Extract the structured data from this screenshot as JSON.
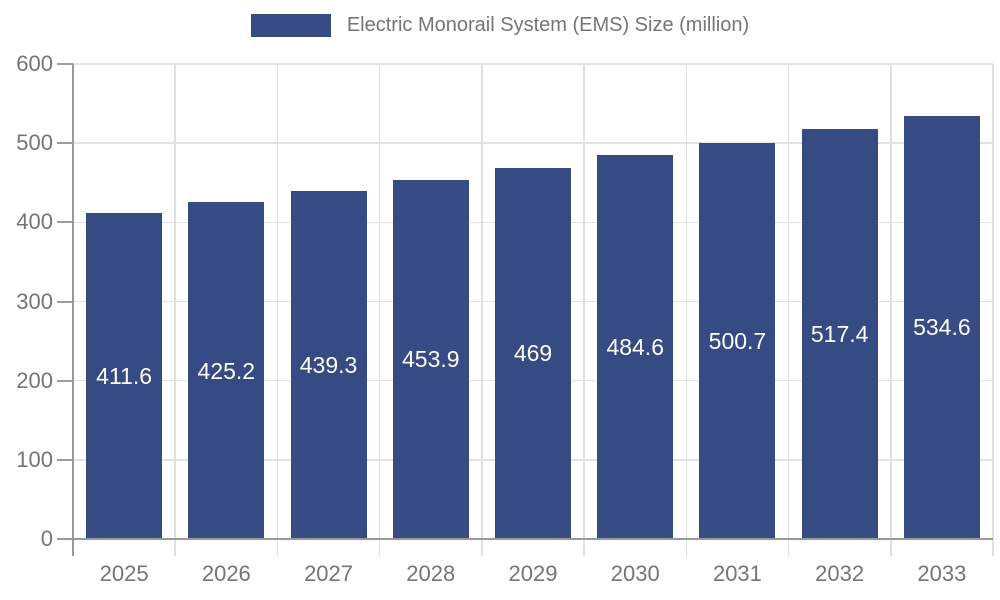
{
  "chart_data": {
    "type": "bar",
    "title": "Electric Monorail System (EMS) Size (million)",
    "categories": [
      "2025",
      "2026",
      "2027",
      "2028",
      "2029",
      "2030",
      "2031",
      "2032",
      "2033"
    ],
    "values": [
      411.6,
      425.2,
      439.3,
      453.9,
      469,
      484.6,
      500.7,
      517.4,
      534.6
    ],
    "value_labels": [
      "411.6",
      "425.2",
      "439.3",
      "453.9",
      "469",
      "484.6",
      "500.7",
      "517.4",
      "534.6"
    ],
    "xlabel": "",
    "ylabel": "",
    "ylim": [
      0,
      600
    ],
    "yticks": [
      0,
      100,
      200,
      300,
      400,
      500,
      600
    ],
    "grid": "on",
    "legend_position": "top",
    "colors": {
      "bar": "#364a83",
      "axis_line": "#999999",
      "gridline": "#e3e3e3",
      "axis_text": "#757575",
      "value_text": "#ffffff",
      "background": "#ffffff"
    }
  }
}
